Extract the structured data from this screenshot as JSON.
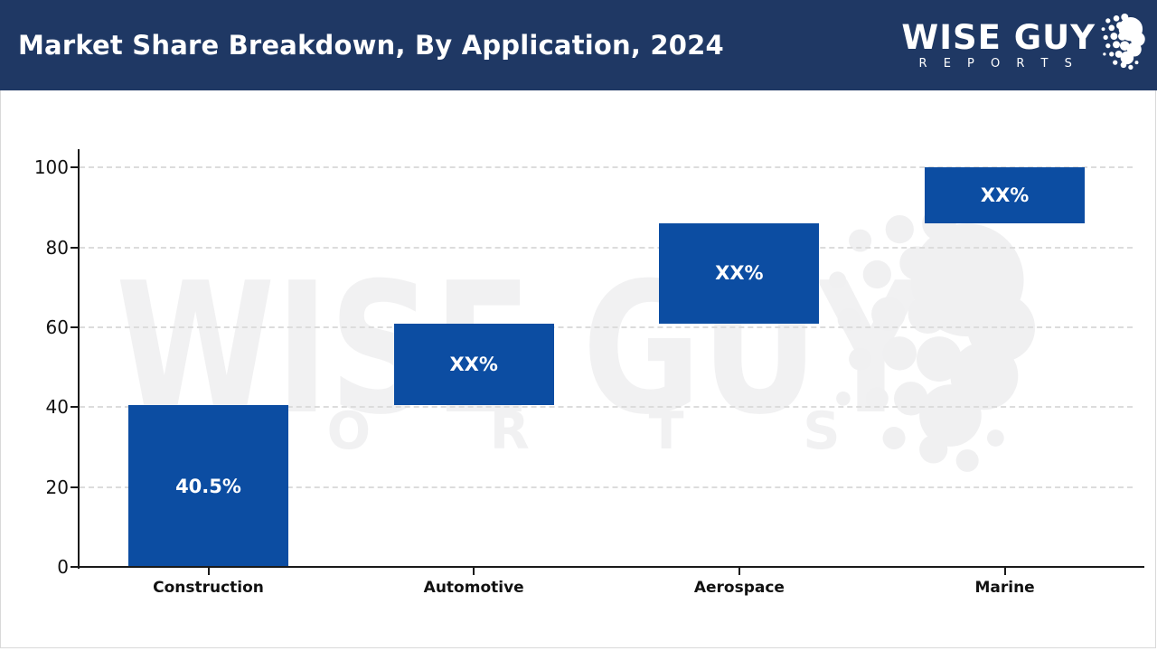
{
  "header": {
    "title": "Market Share Breakdown, By Application, 2024",
    "logo": {
      "line1": "WISE GUY",
      "line2": "R E P O R T S"
    }
  },
  "watermark": {
    "line1": "WISE GUY",
    "line2": "P O R T S"
  },
  "colors": {
    "header_bg": "#1f3864",
    "bar": "#0c4da2",
    "bar_label": "#ffffff",
    "axis": "#1a1a1a",
    "gridline": "#dcdcdc",
    "watermark": "#f1f1f2",
    "frame_border": "#d9d9d9"
  },
  "chart_data": {
    "type": "bar",
    "subtype": "waterfall",
    "title": "Market Share Breakdown, By Application, 2024",
    "categories": [
      "Construction",
      "Automotive",
      "Aerospace",
      "Marine"
    ],
    "segments": [
      {
        "category": "Construction",
        "start": 0,
        "end": 40.5,
        "label": "40.5%"
      },
      {
        "category": "Automotive",
        "start": 40.5,
        "end": 61,
        "label": "XX%"
      },
      {
        "category": "Aerospace",
        "start": 61,
        "end": 86,
        "label": "XX%"
      },
      {
        "category": "Marine",
        "start": 86,
        "end": 100,
        "label": "XX%"
      }
    ],
    "ylim": [
      0,
      100
    ],
    "y_ticks": [
      0,
      20,
      40,
      60,
      80,
      100
    ],
    "xlabel": "",
    "ylabel": "",
    "grid": "horizontal-dashed",
    "legend": "none"
  }
}
